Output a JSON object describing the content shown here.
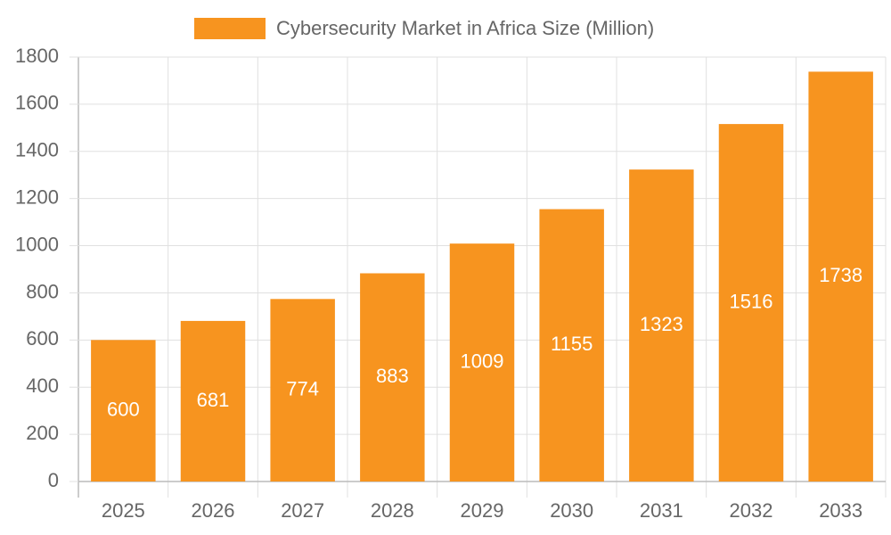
{
  "chart_data": {
    "type": "bar",
    "categories": [
      "2025",
      "2026",
      "2027",
      "2028",
      "2029",
      "2030",
      "2031",
      "2032",
      "2033"
    ],
    "series": [
      {
        "name": "Cybersecurity Market in Africa Size (Million)",
        "color": "#f7941f",
        "values": [
          600,
          681,
          774,
          883,
          1009,
          1155,
          1323,
          1516,
          1738
        ]
      }
    ],
    "ylim": [
      0,
      1800
    ],
    "yticks": [
      0,
      200,
      400,
      600,
      800,
      1000,
      1200,
      1400,
      1600,
      1800
    ],
    "grid": true,
    "legend": "top",
    "data_labels": true
  }
}
